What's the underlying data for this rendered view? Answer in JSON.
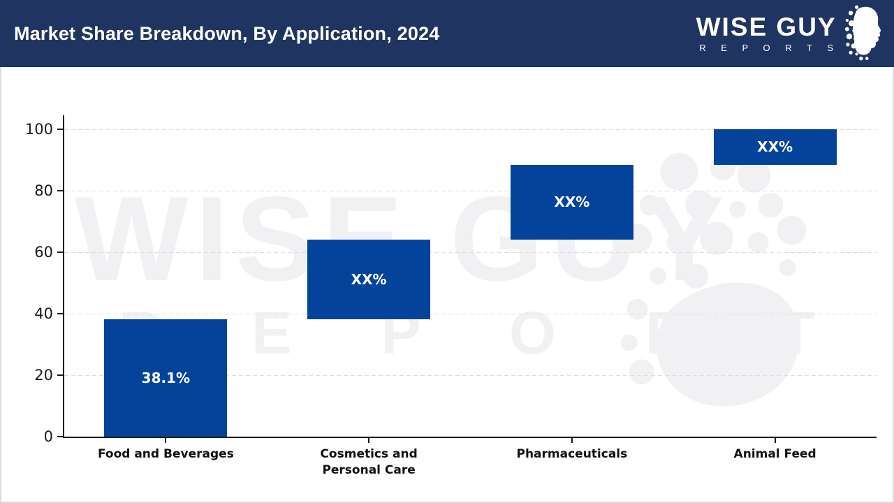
{
  "header": {
    "title": "Market Share Breakdown, By Application, 2024",
    "bg_color": "#203461",
    "logo": {
      "line1": "WISE GUY",
      "line2": "R E P O R T S"
    }
  },
  "watermark": {
    "line1": "WISE GUY",
    "line2": "R E P O R T S"
  },
  "chart_data": {
    "type": "bar",
    "variant": "stacked-waterfall-segments",
    "title": "Market Share Breakdown, By Application, 2024",
    "categories": [
      "Food and Beverages",
      "Cosmetics and\nPersonal Care",
      "Pharmaceuticals",
      "Animal Feed"
    ],
    "segments": [
      {
        "category": "Food and Beverages",
        "start": 0,
        "end": 38.1,
        "label": "38.1%"
      },
      {
        "category": "Cosmetics and Personal Care",
        "start": 38.1,
        "end": 64.1,
        "label": "XX%"
      },
      {
        "category": "Pharmaceuticals",
        "start": 64.1,
        "end": 88.4,
        "label": "XX%"
      },
      {
        "category": "Animal Feed",
        "start": 88.4,
        "end": 100,
        "label": "XX%"
      }
    ],
    "ylim": [
      0,
      100
    ],
    "yticks": [
      0,
      20,
      40,
      60,
      80,
      100
    ],
    "grid": "horizontal-dashed",
    "legend": null,
    "bar_color": "#04439c",
    "bar_label_color": "#ffffff",
    "axis_color": "#1a1a1a",
    "grid_color": "#dddddd"
  }
}
